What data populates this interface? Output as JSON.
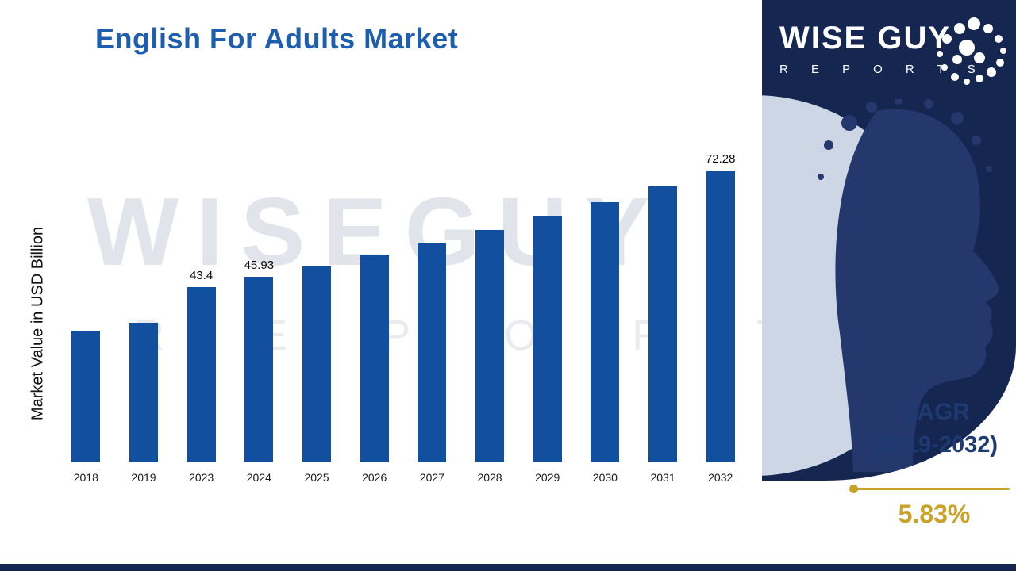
{
  "page": {
    "title": "English For Adults Market",
    "watermark": {
      "line1": "WISEGUY",
      "line2": "R E P O R T S"
    },
    "logo": {
      "line1": "WISE GUY",
      "line2": "R E P O R T S"
    },
    "cagr": {
      "label": "CAGR",
      "range": "(2019-2032)",
      "value": "5.83%"
    }
  },
  "chart_data": {
    "type": "bar",
    "title": "English For Adults Market",
    "xlabel": "",
    "ylabel": "Market Value in USD Billion",
    "categories": [
      "2018",
      "2019",
      "2023",
      "2024",
      "2025",
      "2026",
      "2027",
      "2028",
      "2029",
      "2030",
      "2031",
      "2032"
    ],
    "values": [
      32.7,
      34.6,
      43.4,
      45.93,
      48.6,
      51.4,
      54.4,
      57.6,
      61.0,
      64.5,
      68.3,
      72.28
    ],
    "bar_labels": [
      "",
      "",
      "43.4",
      "45.93",
      "",
      "",
      "",
      "",
      "",
      "",
      "",
      "72.28"
    ],
    "ylim": [
      0,
      80
    ],
    "grid": false,
    "legend": false,
    "bar_color": "#124f9e"
  },
  "colors": {
    "navy": "#152750",
    "bar_blue": "#124f9e",
    "title_blue": "#1d5fae",
    "gold": "#c9a227",
    "cagr_text": "#1e3a72",
    "circle_light": "#cdd6e4",
    "face_navy": "#24386e",
    "watermark_gray": "#9fa9bb"
  }
}
